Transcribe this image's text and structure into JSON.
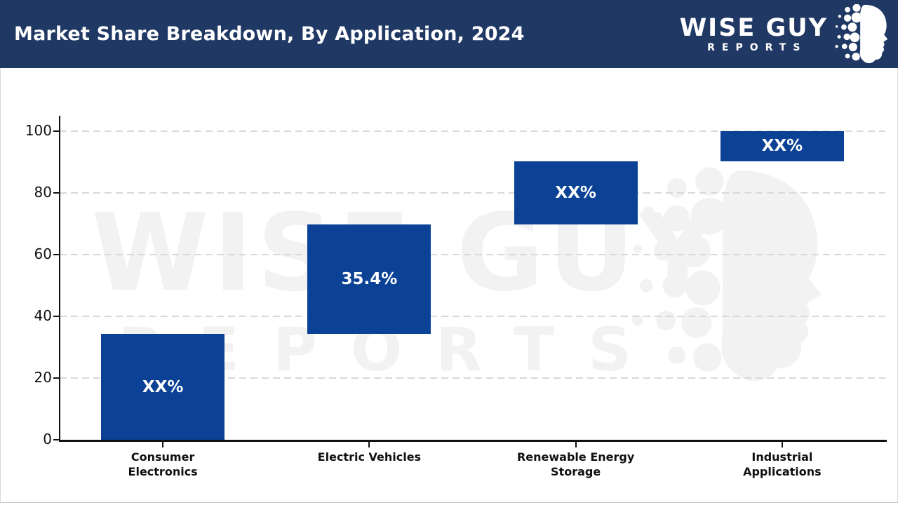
{
  "header": {
    "title": "Market Share Breakdown, By Application, 2024",
    "brand": {
      "name": "WISE GUY",
      "subtitle": "REPORTS"
    },
    "bg_color": "#203864"
  },
  "watermark": {
    "line1": "WISE GUY",
    "line2": "REPORTS"
  },
  "chart_data": {
    "type": "bar",
    "subtype": "floating-waterfall",
    "title": "Market Share Breakdown, By Application, 2024",
    "categories": [
      {
        "label_lines": [
          "Consumer",
          "Electronics"
        ]
      },
      {
        "label_lines": [
          "Electric Vehicles"
        ]
      },
      {
        "label_lines": [
          "Renewable Energy",
          "Storage"
        ]
      },
      {
        "label_lines": [
          "Industrial",
          "Applications"
        ]
      }
    ],
    "segments": [
      {
        "category": "Consumer Electronics",
        "start": 0,
        "end": 34.3,
        "label": "XX%"
      },
      {
        "category": "Electric Vehicles",
        "start": 34.3,
        "end": 69.7,
        "label": "35.4%"
      },
      {
        "category": "Renewable Energy Storage",
        "start": 69.7,
        "end": 90.3,
        "label": "XX%"
      },
      {
        "category": "Industrial Applications",
        "start": 90.3,
        "end": 100,
        "label": "XX%"
      }
    ],
    "ylim": [
      0,
      100
    ],
    "yticks": [
      0,
      20,
      40,
      60,
      80,
      100
    ],
    "grid": "dashed-horizontal",
    "legend": "none",
    "bar_color": "#0b4295",
    "value_label_color": "#ffffff",
    "axis_color": "#111111",
    "grid_color": "#d9d9d9"
  }
}
